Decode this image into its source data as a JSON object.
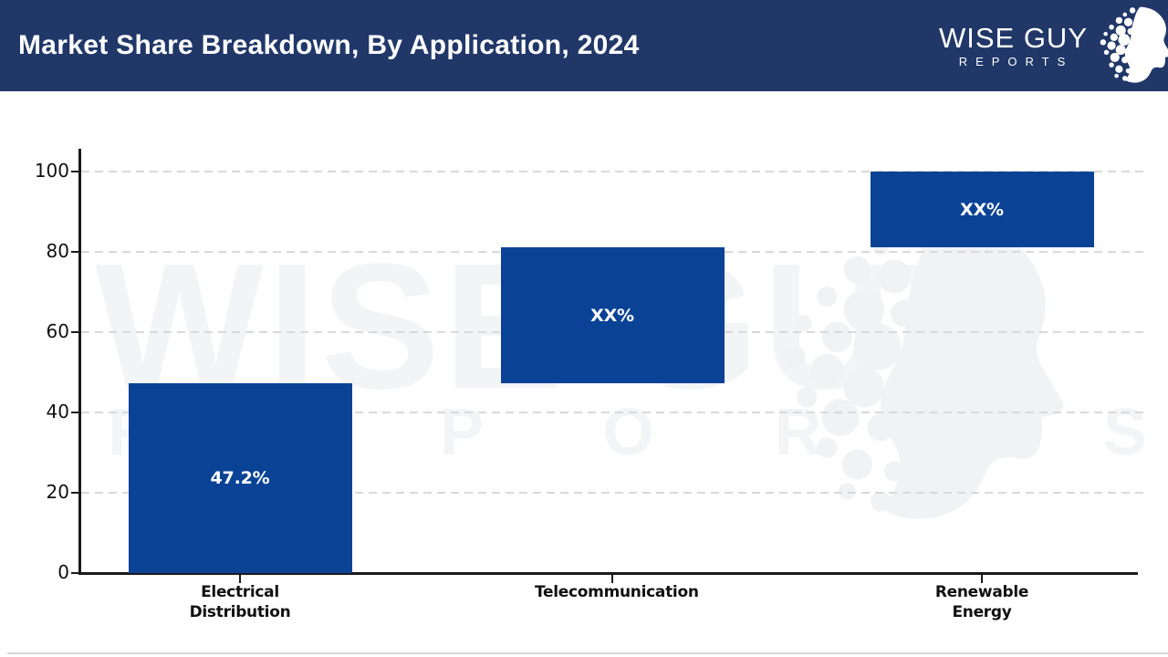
{
  "header": {
    "title": "Market Share Breakdown, By Application, 2024",
    "logo": {
      "brand_top": "WISE GUY",
      "brand_bottom": "REPORTS",
      "head_icon": "dotted-head-profile"
    }
  },
  "watermark": {
    "line1": "WISE GUY",
    "line2": "R E P O R T S",
    "head_icon": "dotted-head-profile"
  },
  "chart_data": {
    "type": "bar",
    "variant": "stacked-waterfall",
    "title": "Market Share Breakdown, By Application, 2024",
    "categories": [
      "Electrical Distribution",
      "Telecommunication",
      "Renewable Energy"
    ],
    "series": [
      {
        "name": "Electrical Distribution",
        "start": 0,
        "end": 47.2,
        "label": "47.2%"
      },
      {
        "name": "Telecommunication",
        "start": 47.2,
        "end": 81.1,
        "label": "XX%"
      },
      {
        "name": "Renewable Energy",
        "start": 81.1,
        "end": 100,
        "label": "XX%"
      }
    ],
    "ylim": [
      0,
      100
    ],
    "yticks": [
      0,
      20,
      40,
      60,
      80,
      100
    ],
    "grid": "horizontal-dashed",
    "legend": "none",
    "bar_color": "#0a4395",
    "bar_label_color": "#ffffff"
  },
  "colors": {
    "header_bg": "#203768",
    "bar": "#0a4395",
    "gridline": "#d9d9d9",
    "axis": "#1a1a1a",
    "watermark": "#f3f4f6"
  }
}
